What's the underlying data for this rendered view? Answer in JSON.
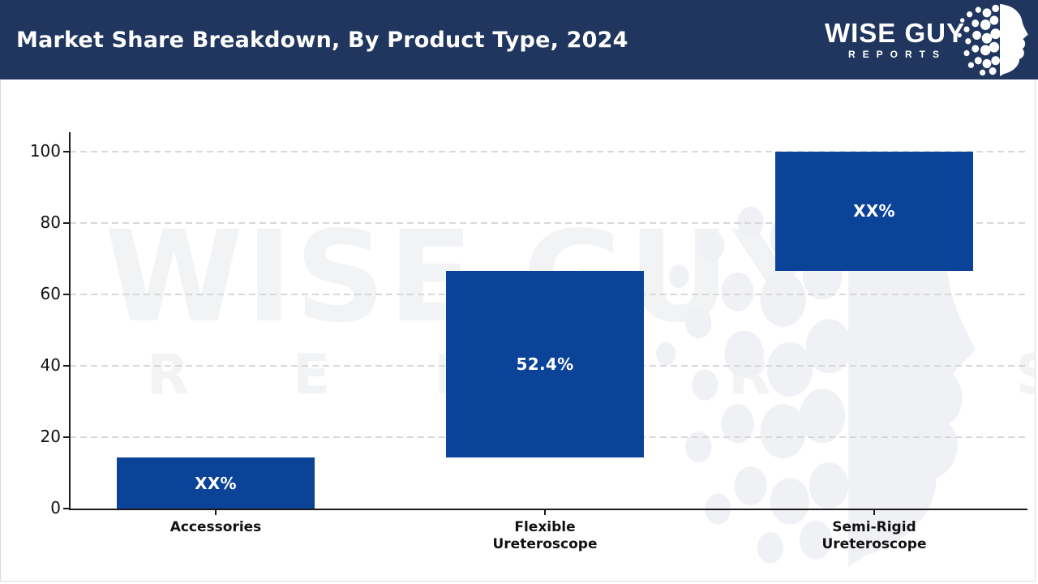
{
  "header": {
    "title": "Market Share Breakdown, By Product Type, 2024",
    "logo_line1": "WISE GUY",
    "logo_line2": "REPORTS"
  },
  "watermark": {
    "line1": "WISE GUY",
    "line2": "R E P O R T S"
  },
  "chart_data": {
    "type": "bar",
    "variant": "floating-stacked-percent",
    "title": "Market Share Breakdown, By Product Type, 2024",
    "categories": [
      "Accessories",
      "Flexible\nUreteroscope",
      "Semi-Rigid\nUreteroscope"
    ],
    "bars": [
      {
        "category": "Accessories",
        "start": 0,
        "end": 14.3,
        "label": "XX%"
      },
      {
        "category": "Flexible Ureteroscope",
        "start": 14.3,
        "end": 66.7,
        "label": "52.4%"
      },
      {
        "category": "Semi-Rigid Ureteroscope",
        "start": 66.7,
        "end": 100,
        "label": "XX%"
      }
    ],
    "ylim": [
      0,
      100
    ],
    "yticks": [
      0,
      20,
      40,
      60,
      80,
      100
    ],
    "grid": "dashed-horizontal",
    "legend": "none",
    "colors": {
      "bar": "#0b4398",
      "header_bg": "#20365f",
      "grid": "#d8d8d8",
      "axis": "#1a1a1a",
      "bar_label": "#ffffff",
      "watermark": "#f2f3f5"
    }
  }
}
